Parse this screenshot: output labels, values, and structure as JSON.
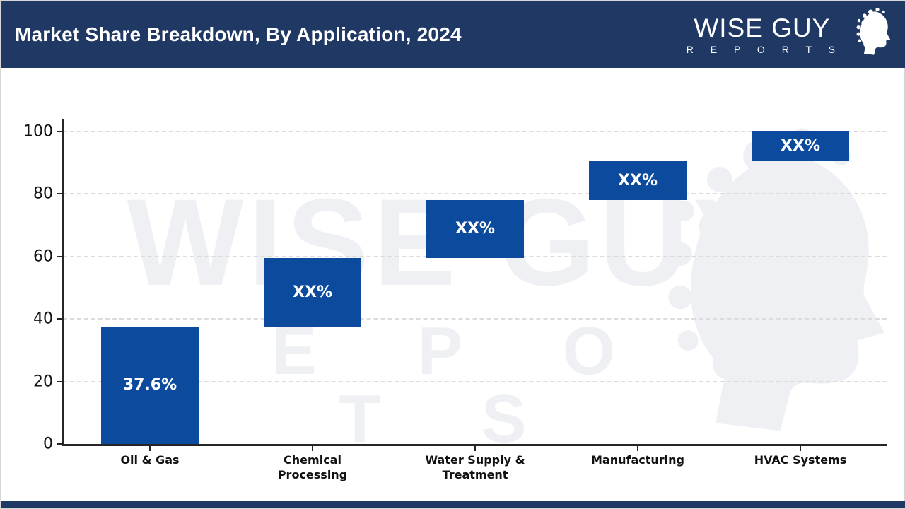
{
  "header": {
    "title": "Market Share Breakdown, By Application, 2024",
    "background_color": "#1f3864",
    "logo": {
      "line1": "WISE GUY",
      "line2": "R E P O R T S",
      "head_icon": "dotted-head-profile-icon"
    }
  },
  "watermark": {
    "line1": "WISE GUY",
    "line2": "R E P O R T S",
    "head_icon": "dotted-head-profile-icon",
    "color": "#eef0f3"
  },
  "chart_data": {
    "type": "bar",
    "subtype": "waterfall",
    "title": "Market Share Breakdown, By Application, 2024",
    "xlabel": "",
    "ylabel": "",
    "ylim": [
      0,
      105
    ],
    "y_ticks": [
      0,
      20,
      40,
      60,
      80,
      100
    ],
    "grid": "horizontal-dashed",
    "bar_color": "#0c4a9e",
    "categories": [
      "Oil & Gas",
      "Chemical\nProcessing",
      "Water Supply &\nTreatment",
      "Manufacturing",
      "HVAC Systems"
    ],
    "segments": [
      {
        "category": "Oil & Gas",
        "start": 0,
        "end": 37.6,
        "value": 37.6,
        "value_label": "37.6%"
      },
      {
        "category": "Chemical Processing",
        "start": 37.6,
        "end": 59.5,
        "value": 21.9,
        "value_label": "XX%"
      },
      {
        "category": "Water Supply & Treatment",
        "start": 59.5,
        "end": 78.0,
        "value": 18.5,
        "value_label": "XX%"
      },
      {
        "category": "Manufacturing",
        "start": 78.0,
        "end": 90.3,
        "value": 12.3,
        "value_label": "XX%"
      },
      {
        "category": "HVAC Systems",
        "start": 90.3,
        "end": 100.0,
        "value": 9.7,
        "value_label": "XX%"
      }
    ]
  },
  "footer": {
    "background_color": "#1f3864"
  }
}
